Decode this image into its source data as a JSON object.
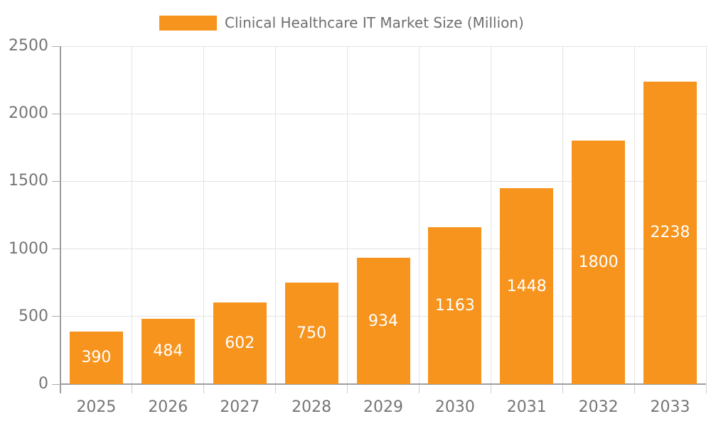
{
  "chart_data": {
    "type": "bar",
    "title": "Clinical Healthcare IT Market Size (Million)",
    "legend_entries": [
      "Clinical Healthcare IT Market Size (Million)"
    ],
    "legend_position": "top",
    "categories": [
      "2025",
      "2026",
      "2027",
      "2028",
      "2029",
      "2030",
      "2031",
      "2032",
      "2033"
    ],
    "series": [
      {
        "name": "Clinical Healthcare IT Market Size (Million)",
        "values": [
          390,
          484,
          602,
          750,
          934,
          1163,
          1448,
          1800,
          2238
        ]
      }
    ],
    "bar_value_labels": [
      "390",
      "484",
      "602",
      "750",
      "934",
      "1163",
      "1448",
      "1800",
      "2238"
    ],
    "xlabel": "",
    "ylabel": "",
    "ylim": [
      0,
      2500
    ],
    "y_ticks": [
      0,
      500,
      1000,
      1500,
      2000,
      2500
    ],
    "y_tick_labels": [
      "0",
      "500",
      "1000",
      "1500",
      "2000",
      "2500"
    ],
    "grid": true,
    "colors": {
      "bar": "#F7941E",
      "grid_line": "#E3E3E3",
      "axis_line": "#9E9E9E",
      "y_tick_mark": "#ADADAD",
      "x_tick_mark": "#CFCFCF",
      "axis_text": "#757575",
      "title_text": "#6F6F6F",
      "bar_value_text": "#FFFFFF",
      "background": "#FFFFFF"
    }
  }
}
